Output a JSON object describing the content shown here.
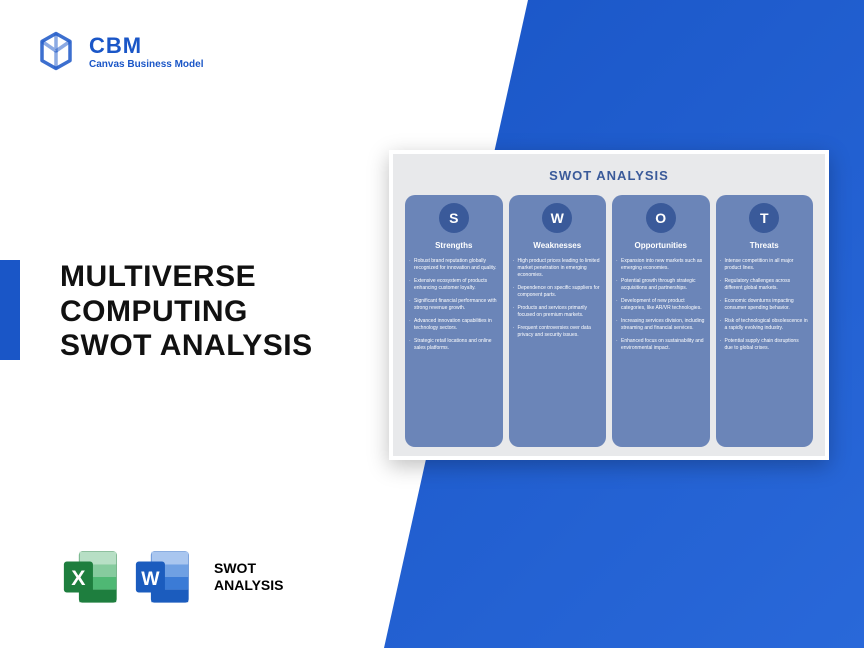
{
  "colors": {
    "brand_blue": "#1a56c7",
    "swot_panel_bg": "#e8e9eb",
    "swot_col_bg": "#6b85b8",
    "swot_circle_bg": "#3a5a9a",
    "text_dark": "#111111",
    "white": "#ffffff",
    "excel_green": "#1e7e3e",
    "word_blue": "#1b5cbe"
  },
  "header": {
    "title": "CBM",
    "subtitle": "Canvas Business Model"
  },
  "main_title": "MULTIVERSE COMPUTING SWOT ANALYSIS",
  "bottom": {
    "label_line1": "SWOT",
    "label_line2": "ANALYSIS"
  },
  "swot": {
    "title": "SWOT ANALYSIS",
    "columns": [
      {
        "letter": "S",
        "heading": "Strengths",
        "items": [
          "Robust brand reputation globally recognized for innovation and quality.",
          "Extensive ecosystem of products enhancing customer loyalty.",
          "Significant financial performance with strong revenue growth.",
          "Advanced innovation capabilities in technology sectors.",
          "Strategic retail locations and online sales platforms."
        ]
      },
      {
        "letter": "W",
        "heading": "Weaknesses",
        "items": [
          "High product prices leading to limited market penetration in emerging economies.",
          "Dependence on specific suppliers for component parts.",
          "Products and services primarily focused on premium markets.",
          "Frequent controversies over data privacy and security issues."
        ]
      },
      {
        "letter": "O",
        "heading": "Opportunities",
        "items": [
          "Expansion into new markets such as emerging economies.",
          "Potential growth through strategic acquisitions and partnerships.",
          "Development of new product categories, like AR/VR technologies.",
          "Increasing services division, including streaming and financial services.",
          "Enhanced focus on sustainability and environmental impact."
        ]
      },
      {
        "letter": "T",
        "heading": "Threats",
        "items": [
          "Intense competition in all major product lines.",
          "Regulatory challenges across different global markets.",
          "Economic downturns impacting consumer spending behavior.",
          "Risk of technological obsolescence in a rapidly evolving industry.",
          "Potential supply chain disruptions due to global crises."
        ]
      }
    ]
  }
}
